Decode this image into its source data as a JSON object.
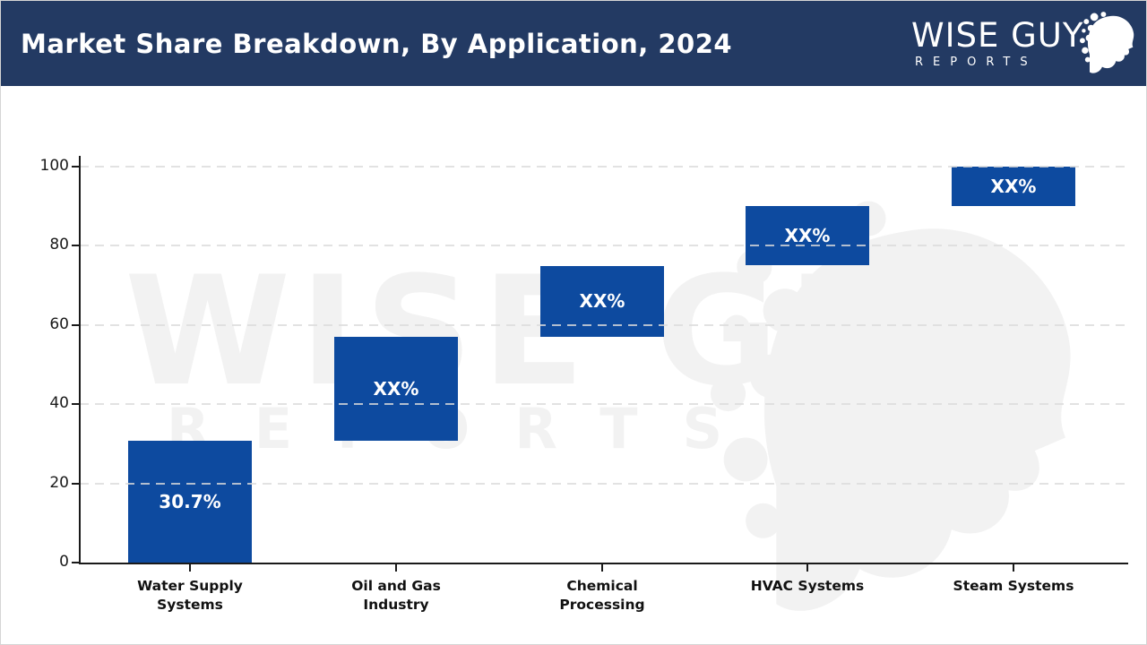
{
  "header": {
    "title": "Market Share Breakdown, By Application, 2024",
    "bg_color": "#233a63",
    "logo": {
      "line1": "WISE GUY",
      "line2": "REPORTS"
    }
  },
  "watermark": {
    "line1": "WISE GUY",
    "line2": "REPORTS"
  },
  "chart_data": {
    "type": "bar",
    "subtype": "floating-waterfall",
    "title": "Market Share Breakdown, By Application, 2024",
    "categories": [
      "Water Supply Systems",
      "Oil and Gas Industry",
      "Chemical Processing",
      "HVAC Systems",
      "Steam Systems"
    ],
    "category_lines": [
      [
        "Water Supply",
        "Systems"
      ],
      [
        "Oil and Gas",
        "Industry"
      ],
      [
        "Chemical",
        "Processing"
      ],
      [
        "HVAC Systems"
      ],
      [
        "Steam Systems"
      ]
    ],
    "segments": [
      {
        "start": 0,
        "end": 30.7,
        "label": "30.7%"
      },
      {
        "start": 30.7,
        "end": 57,
        "label": "XX%"
      },
      {
        "start": 57,
        "end": 75,
        "label": "XX%"
      },
      {
        "start": 75,
        "end": 90,
        "label": "XX%"
      },
      {
        "start": 90,
        "end": 100,
        "label": "XX%"
      }
    ],
    "xlabel": "",
    "ylabel": "",
    "ylim": [
      0,
      100
    ],
    "yticks": [
      0,
      20,
      40,
      60,
      80,
      100
    ],
    "grid": true,
    "grid_style": "dashed",
    "legend": false,
    "bar_color": "#0d4a9f",
    "bar_label_color": "#ffffff",
    "axis_color": "#1a1a1a"
  }
}
